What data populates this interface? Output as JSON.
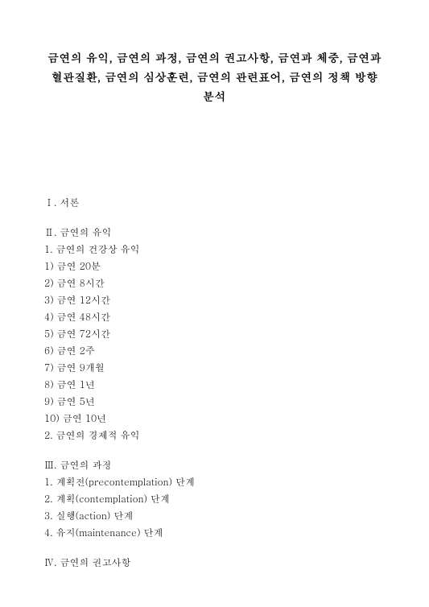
{
  "title": {
    "line1": "금연의 유익, 금연의 과정, 금연의 권고사항, 금연과 체중, 금연과",
    "line2": "혈관질환, 금연의 심상훈련, 금연의 관련표어, 금연의 정책 방향",
    "line3": "분석"
  },
  "sections": {
    "s1": {
      "header": "Ⅰ. 서론"
    },
    "s2": {
      "header": "Ⅱ. 금연의 유익",
      "sub1": "1. 금연의 건강상 유익",
      "items": {
        "i1": "1) 금연 20분",
        "i2": "2) 금연 8시간",
        "i3": "3) 금연 12시간",
        "i4": "4) 금연 48시간",
        "i5": "5) 금연 72시간",
        "i6": "6) 금연 2주",
        "i7": "7) 금연 9개월",
        "i8": "8) 금연 1년",
        "i9": "9) 금연 5년",
        "i10": "10) 금연 10년"
      },
      "sub2": "2. 금연의 경제적 유익"
    },
    "s3": {
      "header": "Ⅲ. 금연의 과정",
      "items": {
        "i1": "1. 계획전(precontemplation) 단계",
        "i2": "2. 계획(contemplation) 단계",
        "i3": "3. 실행(action) 단계",
        "i4": "4. 유지(maintenance) 단계"
      }
    },
    "s4": {
      "header": "Ⅳ. 금연의 권고사항"
    }
  }
}
